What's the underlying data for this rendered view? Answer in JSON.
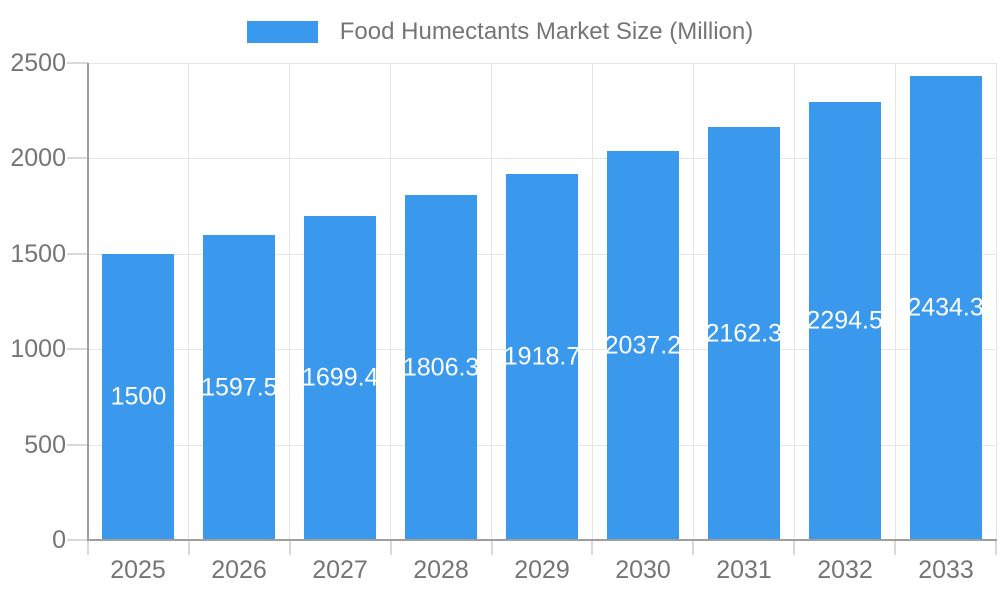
{
  "legend": {
    "label": "Food Humectants Market Size (Million)"
  },
  "chart_data": {
    "type": "bar",
    "title": "Food Humectants Market Size (Million)",
    "legend_position": "top",
    "categories": [
      "2025",
      "2026",
      "2027",
      "2028",
      "2029",
      "2030",
      "2031",
      "2032",
      "2033"
    ],
    "series": [
      {
        "name": "Food Humectants Market Size (Million)",
        "values": [
          1500,
          1597.5,
          1699.4,
          1806.3,
          1918.7,
          2037.2,
          2162.3,
          2294.5,
          2434.3
        ]
      }
    ],
    "value_labels": [
      "1500",
      "1597.5",
      "1699.4",
      "1806.3",
      "1918.7",
      "2037.2",
      "2162.3",
      "2294.5",
      "2434.3"
    ],
    "xlabel": "",
    "ylabel": "",
    "ylim": [
      0,
      2500
    ],
    "yticks": [
      0,
      500,
      1000,
      1500,
      2000,
      2500
    ],
    "grid": true,
    "colors": {
      "bar": "#3A99EC",
      "axis_label": "#757575",
      "legend_text": "#757575",
      "value_label": "#FFFFFF",
      "gridline": "#E6E6E6",
      "axis_line": "#9E9E9E",
      "tick": "#D9D9D9",
      "background": "#FFFFFF"
    }
  }
}
